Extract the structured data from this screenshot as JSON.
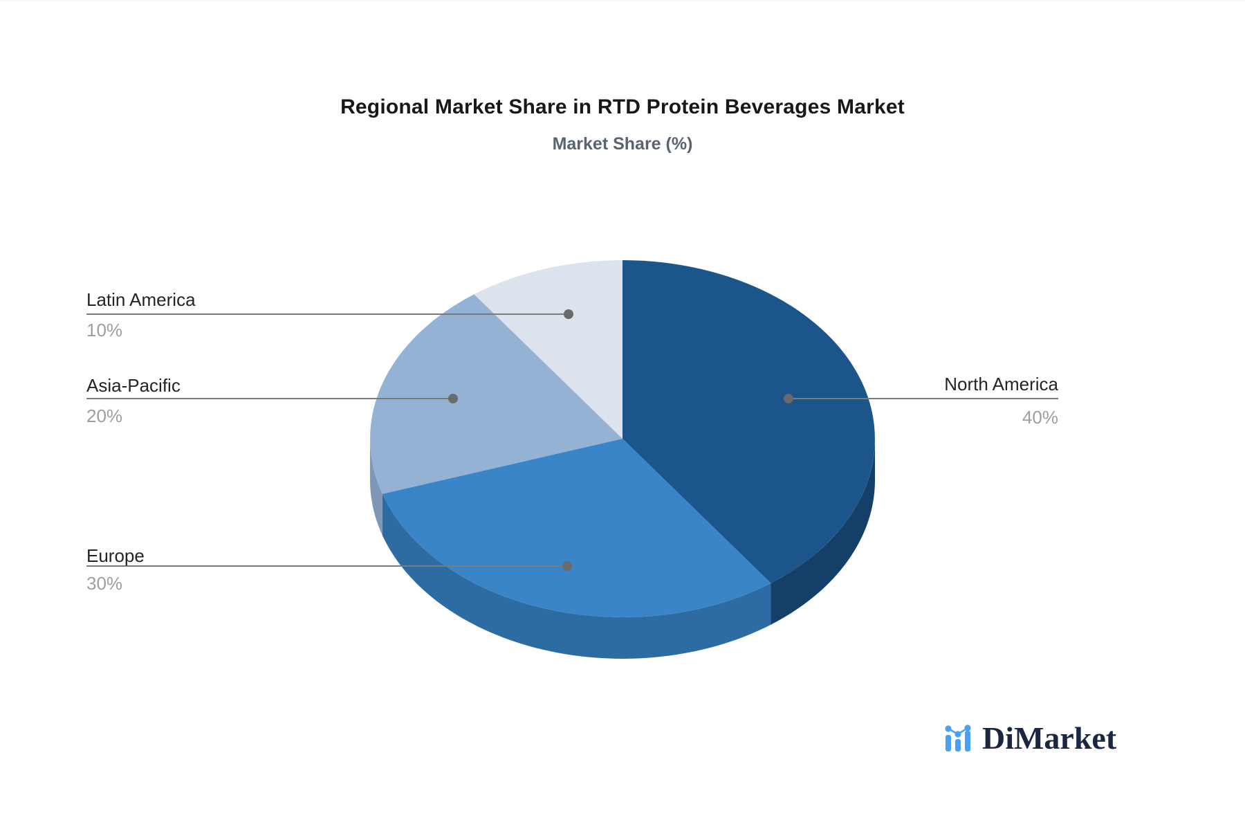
{
  "chart_data": {
    "type": "pie",
    "style": "3d",
    "title": "Regional Market Share in RTD Protein Beverages Market",
    "subtitle": "Market Share (%)",
    "unit": "%",
    "start_angle": "12-o'clock",
    "direction": "clockwise",
    "legend_position": "callout-labels",
    "slices": [
      {
        "label": "North America",
        "value": 40,
        "display": "40%",
        "color": "#1b558b",
        "side_color": "#143f68"
      },
      {
        "label": "Europe",
        "value": 30,
        "display": "30%",
        "color": "#3a85c8",
        "side_color": "#2d6ba3"
      },
      {
        "label": "Asia-Pacific",
        "value": 20,
        "display": "20%",
        "color": "#93b2d4",
        "side_color": "#7d97b6"
      },
      {
        "label": "Latin America",
        "value": 10,
        "display": "10%",
        "color": "#dde3ed",
        "side_color": "#b9c5d6"
      }
    ]
  },
  "colors": {
    "connector_line": "#7b7b7b",
    "connector_dot": "#6a6a6a",
    "label_name": "#242424",
    "label_value": "#9e9e9e",
    "logo_blue": "#4aa0f4",
    "logo_navy": "#1b2740"
  },
  "logo": {
    "text": "DiMarket"
  }
}
